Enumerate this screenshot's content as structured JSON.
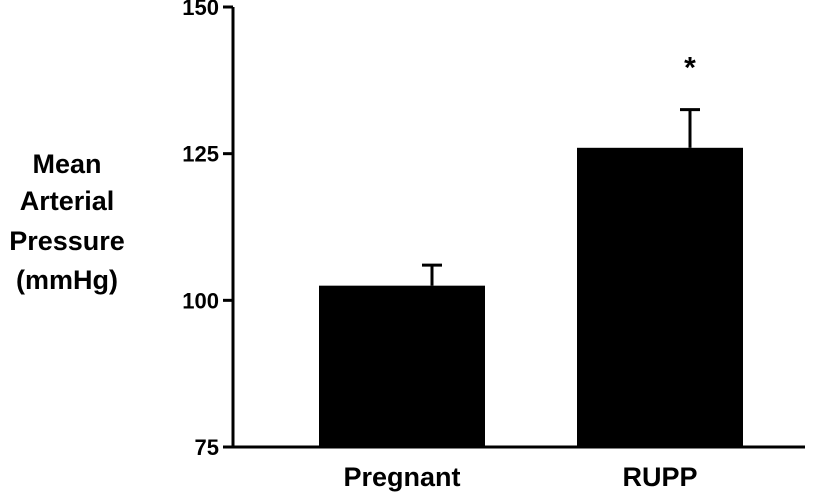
{
  "chart_data": {
    "type": "bar",
    "title": "",
    "ylabel_lines": [
      "Mean",
      "Arterial",
      "Pressure",
      "(mmHg)"
    ],
    "xlabel": "",
    "ylim": [
      75,
      150
    ],
    "yticks": [
      75,
      100,
      125,
      150
    ],
    "categories": [
      "Pregnant",
      "RUPP"
    ],
    "values": [
      102.5,
      126
    ],
    "errors": [
      3.5,
      6.5
    ],
    "annotations": [
      "",
      "*"
    ],
    "bar_color": "#000000",
    "grid": false,
    "legend": "none"
  }
}
